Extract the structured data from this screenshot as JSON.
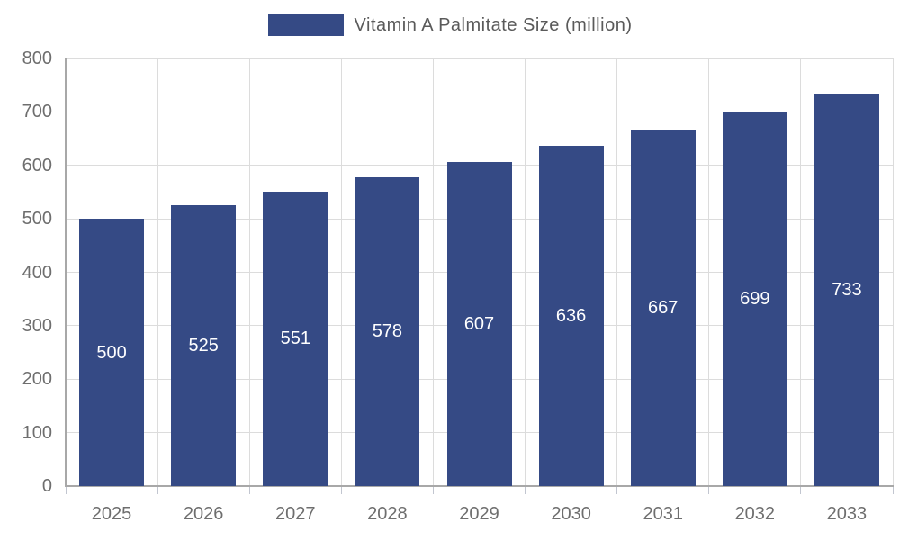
{
  "chart_data": {
    "type": "bar",
    "title": "Vitamin A Palmitate Size (million)",
    "categories": [
      "2025",
      "2026",
      "2027",
      "2028",
      "2029",
      "2030",
      "2031",
      "2032",
      "2033"
    ],
    "values": [
      500,
      525,
      551,
      578,
      607,
      636,
      667,
      699,
      733
    ],
    "xlabel": "",
    "ylabel": "",
    "ylim": [
      0,
      800
    ],
    "ytick_interval": 100,
    "grid": true,
    "legend_position": "top-center",
    "legend_entries": [
      "Vitamin A Palmitate Size (million)"
    ],
    "bar_value_labels": [
      "500",
      "525",
      "551",
      "578",
      "607",
      "636",
      "667",
      "699",
      "733"
    ],
    "ytick_labels": [
      "0",
      "100",
      "200",
      "300",
      "400",
      "500",
      "600",
      "700",
      "800"
    ]
  },
  "colors": {
    "bar": "#354a85",
    "bar_value_text": "#ffffff",
    "gridline": "#dcdcdc",
    "axis_line": "#a8a8a8",
    "tick_mark": "#c2c6d0",
    "axis_text": "#6e6e6e",
    "legend_text": "#5a5a5a"
  }
}
